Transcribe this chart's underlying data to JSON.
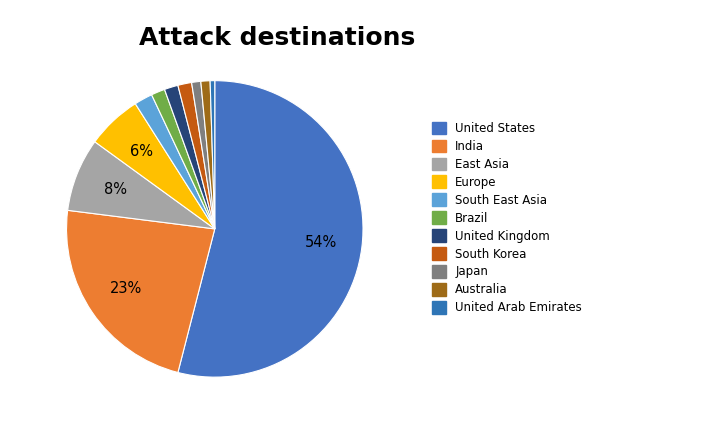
{
  "title": "Attack destinations",
  "labels": [
    "United States",
    "India",
    "East Asia",
    "Europe",
    "South East Asia",
    "Brazil",
    "United Kingdom",
    "South Korea",
    "Japan",
    "Australia",
    "United Arab Emirates"
  ],
  "values": [
    54,
    23,
    8,
    6,
    2,
    1.5,
    1.5,
    1.5,
    1,
    1,
    0.5
  ],
  "colors": [
    "#4472C4",
    "#ED7D31",
    "#A5A5A5",
    "#FFC000",
    "#5BA3D9",
    "#70AD47",
    "#264478",
    "#C55A11",
    "#7F7F7F",
    "#9E6B17",
    "#2E75B6"
  ],
  "title_fontsize": 18,
  "background_color": "#FFFFFF",
  "pct_threshold": 5.5
}
